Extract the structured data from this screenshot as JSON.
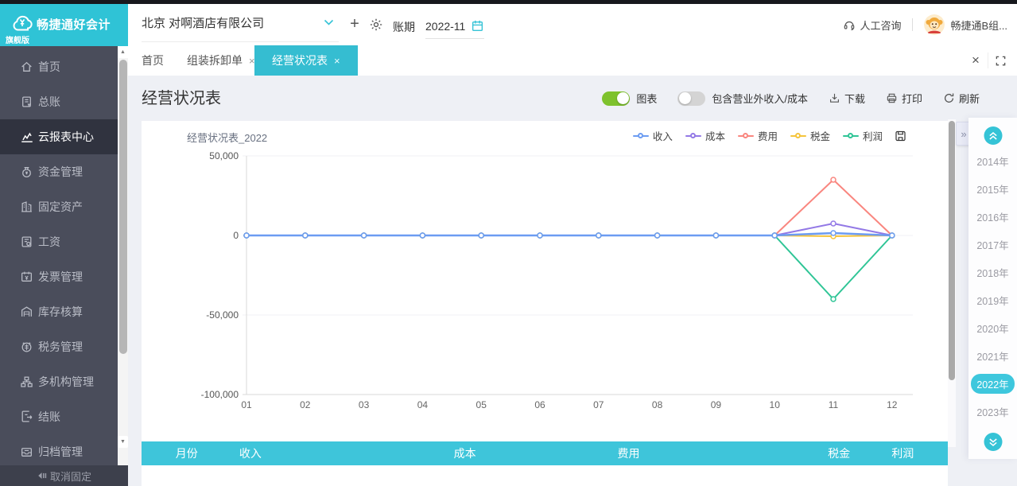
{
  "colors": {
    "brand_teal": "#35c3d6",
    "sidebar_bg": "#4a4d5b",
    "sidebar_active_bg": "#30333f",
    "toggle_on_green": "#7ec22d",
    "table_header_bg": "#3ec5da"
  },
  "brand": {
    "title": "畅捷通好会计",
    "edition": "旗舰版"
  },
  "topbar": {
    "company": "北京 对啊酒店有限公司",
    "period_label": "账期",
    "period_value": "2022-11",
    "support_label": "人工咨询",
    "username": "畅捷通B组..."
  },
  "tabs": [
    {
      "label": "首页",
      "close": ""
    },
    {
      "label": "组装拆卸单",
      "close": "×"
    },
    {
      "label": "经营状况表",
      "close": "×"
    }
  ],
  "sidebar": {
    "items": [
      {
        "label": "首页",
        "icon": "home-icon"
      },
      {
        "label": "总账",
        "icon": "ledger-icon"
      },
      {
        "label": "云报表中心",
        "icon": "cloud-report-icon",
        "active": true
      },
      {
        "label": "资金管理",
        "icon": "funds-icon"
      },
      {
        "label": "固定资产",
        "icon": "fixed-assets-icon"
      },
      {
        "label": "工资",
        "icon": "salary-icon"
      },
      {
        "label": "发票管理",
        "icon": "invoice-icon"
      },
      {
        "label": "库存核算",
        "icon": "inventory-icon"
      },
      {
        "label": "税务管理",
        "icon": "tax-icon"
      },
      {
        "label": "多机构管理",
        "icon": "multi-org-icon"
      },
      {
        "label": "结账",
        "icon": "closing-icon"
      },
      {
        "label": "归档管理",
        "icon": "archive-icon"
      }
    ],
    "unpin_label": "取消固定"
  },
  "page": {
    "title": "经营状况表",
    "chart_toggle_label": "图表",
    "include_toggle_label": "包含营业外收入/成本",
    "download_label": "下载",
    "print_label": "打印",
    "refresh_label": "刷新"
  },
  "chart_data": {
    "type": "line",
    "title": "经营状况表_2022",
    "x": [
      "01",
      "02",
      "03",
      "04",
      "05",
      "06",
      "07",
      "08",
      "09",
      "10",
      "11",
      "12"
    ],
    "series": [
      {
        "name": "收入",
        "color": "#6c9cf2",
        "values": [
          0,
          0,
          0,
          0,
          0,
          0,
          0,
          0,
          0,
          0,
          1500,
          0
        ]
      },
      {
        "name": "成本",
        "color": "#9379e6",
        "values": [
          0,
          0,
          0,
          0,
          0,
          0,
          0,
          0,
          0,
          0,
          7500,
          0
        ]
      },
      {
        "name": "费用",
        "color": "#f9867f",
        "values": [
          0,
          0,
          0,
          0,
          0,
          0,
          0,
          0,
          0,
          0,
          35000,
          0
        ]
      },
      {
        "name": "税金",
        "color": "#f5c43c",
        "values": [
          0,
          0,
          0,
          0,
          0,
          0,
          0,
          0,
          0,
          0,
          -500,
          0
        ]
      },
      {
        "name": "利润",
        "color": "#2fc596",
        "values": [
          0,
          0,
          0,
          0,
          0,
          0,
          0,
          0,
          0,
          0,
          -40000,
          0
        ]
      }
    ],
    "ylim": [
      -100000,
      50000
    ],
    "yticks": [
      50000,
      0,
      -50000,
      -100000
    ],
    "ytick_labels": [
      "50,000",
      "0",
      "-50,000",
      "-100,000"
    ],
    "grid": true,
    "legend_position": "top-right"
  },
  "table": {
    "headers": [
      "月份",
      "收入",
      "成本",
      "费用",
      "税金",
      "利润"
    ]
  },
  "year_panel": {
    "years": [
      "2014年",
      "2015年",
      "2016年",
      "2017年",
      "2018年",
      "2019年",
      "2020年",
      "2021年",
      "2022年",
      "2023年"
    ],
    "selected": "2022年"
  }
}
